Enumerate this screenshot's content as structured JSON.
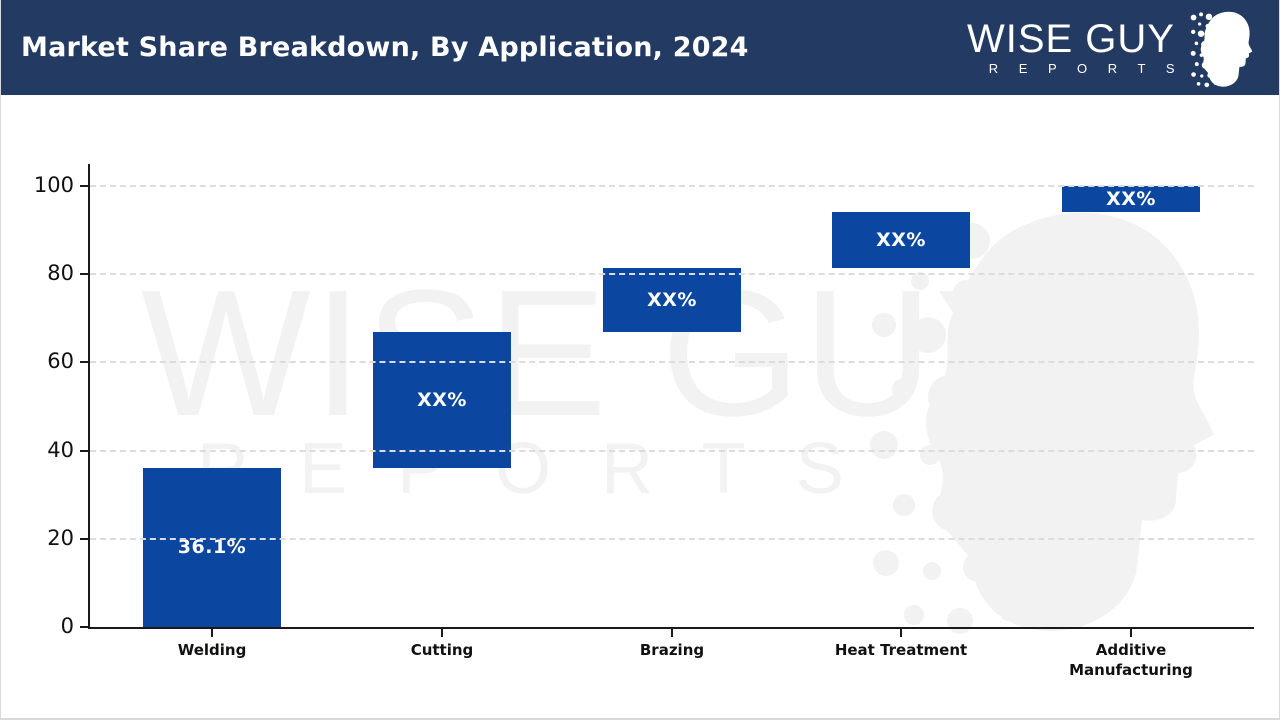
{
  "header": {
    "title": "Market Share Breakdown, By Application, 2024",
    "logo": {
      "line1": "WISE GUY",
      "line2": "R E P O R T S"
    }
  },
  "watermark": {
    "line1": "WISE GUY",
    "line2": "REPORTS"
  },
  "colors": {
    "header_bg": "#233a63",
    "bar_fill": "#0b47a0",
    "bar_label": "#ffffff",
    "gridline": "#dcdcdc",
    "axis": "#1a1a1a",
    "watermark": "#f2f2f2"
  },
  "chart_data": {
    "type": "bar",
    "subtype": "waterfall",
    "title": "Market Share Breakdown, By Application, 2024",
    "xlabel": "",
    "ylabel": "",
    "categories": [
      "Welding",
      "Cutting",
      "Brazing",
      "Heat Treatment",
      "Additive Manufacturing"
    ],
    "segments": [
      {
        "category": "Welding",
        "start": 0,
        "end": 36.1,
        "value": 36.1,
        "label": "36.1%"
      },
      {
        "category": "Cutting",
        "start": 36.1,
        "end": 67.0,
        "value": 30.9,
        "label": "XX%"
      },
      {
        "category": "Brazing",
        "start": 67.0,
        "end": 81.5,
        "value": 14.5,
        "label": "XX%"
      },
      {
        "category": "Heat Treatment",
        "start": 81.5,
        "end": 94.0,
        "value": 12.5,
        "label": "XX%"
      },
      {
        "category": "Additive Manufacturing",
        "start": 94.0,
        "end": 100.0,
        "value": 6.0,
        "label": "XX%"
      }
    ],
    "yticks": [
      0,
      20,
      40,
      60,
      80,
      100
    ],
    "ylim": [
      0,
      105
    ],
    "grid": "horizontal-dashed",
    "legend": "none"
  }
}
